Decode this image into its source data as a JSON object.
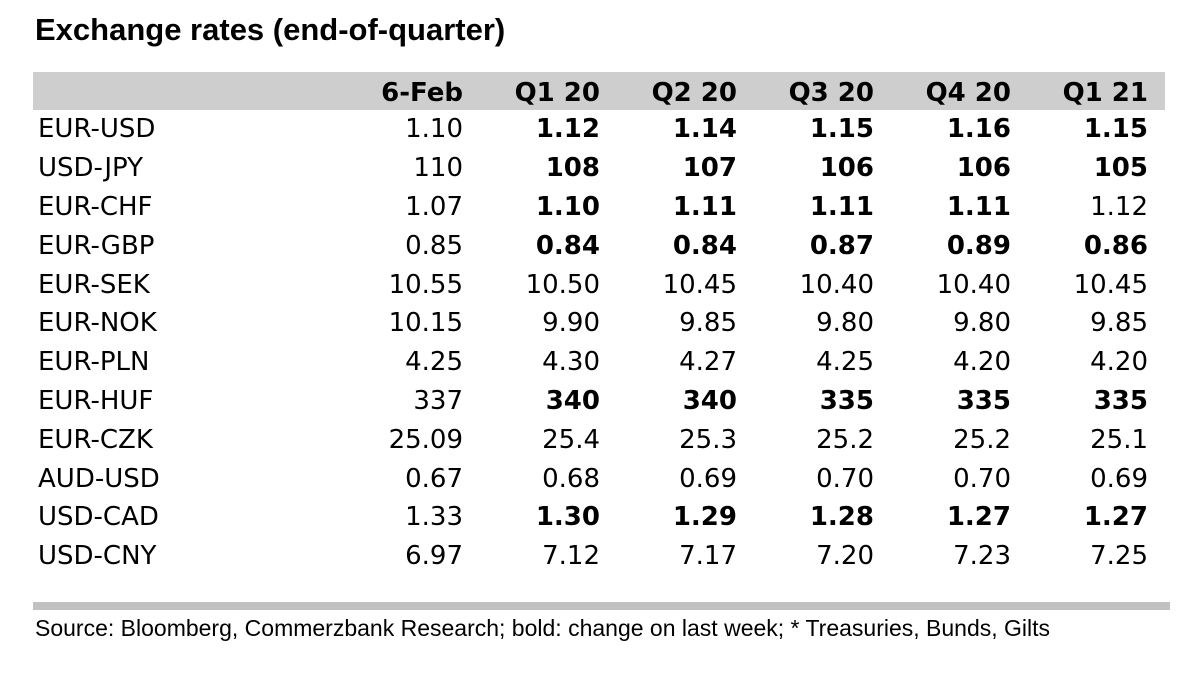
{
  "title": "Exchange rates (end-of-quarter)",
  "table": {
    "columns": [
      "",
      "6-Feb",
      "Q1 20",
      "Q2 20",
      "Q3 20",
      "Q4 20",
      "Q1 21"
    ],
    "rows": [
      {
        "pair": "EUR-USD",
        "values": [
          "1.10",
          "1.12",
          "1.14",
          "1.15",
          "1.16",
          "1.15"
        ],
        "bold": [
          false,
          true,
          true,
          true,
          true,
          true
        ]
      },
      {
        "pair": "USD-JPY",
        "values": [
          "110",
          "108",
          "107",
          "106",
          "106",
          "105"
        ],
        "bold": [
          false,
          true,
          true,
          true,
          true,
          true
        ]
      },
      {
        "pair": "EUR-CHF",
        "values": [
          "1.07",
          "1.10",
          "1.11",
          "1.11",
          "1.11",
          "1.12"
        ],
        "bold": [
          false,
          true,
          true,
          true,
          true,
          false
        ]
      },
      {
        "pair": "EUR-GBP",
        "values": [
          "0.85",
          "0.84",
          "0.84",
          "0.87",
          "0.89",
          "0.86"
        ],
        "bold": [
          false,
          true,
          true,
          true,
          true,
          true
        ]
      },
      {
        "pair": "EUR-SEK",
        "values": [
          "10.55",
          "10.50",
          "10.45",
          "10.40",
          "10.40",
          "10.45"
        ],
        "bold": [
          false,
          false,
          false,
          false,
          false,
          false
        ]
      },
      {
        "pair": "EUR-NOK",
        "values": [
          "10.15",
          "9.90",
          "9.85",
          "9.80",
          "9.80",
          "9.85"
        ],
        "bold": [
          false,
          false,
          false,
          false,
          false,
          false
        ]
      },
      {
        "pair": "EUR-PLN",
        "values": [
          "4.25",
          "4.30",
          "4.27",
          "4.25",
          "4.20",
          "4.20"
        ],
        "bold": [
          false,
          false,
          false,
          false,
          false,
          false
        ]
      },
      {
        "pair": "EUR-HUF",
        "values": [
          "337",
          "340",
          "340",
          "335",
          "335",
          "335"
        ],
        "bold": [
          false,
          true,
          true,
          true,
          true,
          true
        ]
      },
      {
        "pair": "EUR-CZK",
        "values": [
          "25.09",
          "25.4",
          "25.3",
          "25.2",
          "25.2",
          "25.1"
        ],
        "bold": [
          false,
          false,
          false,
          false,
          false,
          false
        ]
      },
      {
        "pair": "AUD-USD",
        "values": [
          "0.67",
          "0.68",
          "0.69",
          "0.70",
          "0.70",
          "0.69"
        ],
        "bold": [
          false,
          false,
          false,
          false,
          false,
          false
        ]
      },
      {
        "pair": "USD-CAD",
        "values": [
          "1.33",
          "1.30",
          "1.29",
          "1.28",
          "1.27",
          "1.27"
        ],
        "bold": [
          false,
          true,
          true,
          true,
          true,
          true
        ]
      },
      {
        "pair": "USD-CNY",
        "values": [
          "6.97",
          "7.12",
          "7.17",
          "7.20",
          "7.23",
          "7.25"
        ],
        "bold": [
          false,
          false,
          false,
          false,
          false,
          false
        ]
      }
    ]
  },
  "footer": {
    "source_note": "Source: Bloomberg, Commerzbank Research; bold: change on last week; * Treasuries, Bunds, Gilts"
  },
  "colors": {
    "header_band": "#cecece",
    "divider_bar": "#c1c1c1",
    "text": "#000000"
  }
}
